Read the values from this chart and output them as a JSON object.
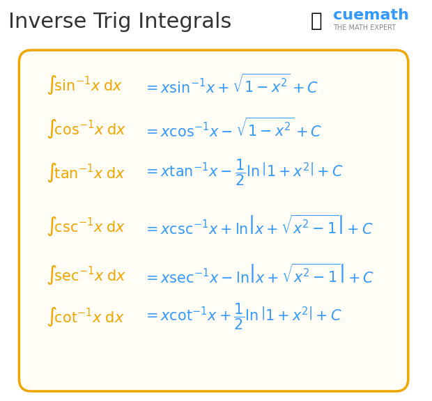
{
  "title": "Inverse Trig Integrals",
  "title_color": "#333333",
  "title_fontsize": 22,
  "bg_color": "#ffffff",
  "box_edge_color": "#f0a500",
  "box_face_color": "#fffdf5",
  "orange_color": "#f0a500",
  "blue_color": "#3399ff",
  "formulas": [
    {
      "lhs": "$\\int\\!\\sin^{-1}\\!x\\;dx$",
      "rhs": "$= x\\sin^{-1}\\!x + \\sqrt{1 - x^2} + C$"
    },
    {
      "lhs": "$\\int\\!\\cos^{-1}\\!x\\;dx$",
      "rhs": "$= x\\cos^{-1}\\!x - \\sqrt{1 - x^2} + C$"
    },
    {
      "lhs": "$\\int\\!\\tan^{-1}\\!x\\;dx$",
      "rhs": "$= x\\tan^{-1}\\!x - \\dfrac{1}{2}\\ln\\left|1 + x^2\\right| + C$"
    },
    {
      "lhs": "$\\int\\!\\csc^{-1}\\!x\\;dx$",
      "rhs": "$= x\\csc^{-1}\\!x + \\ln\\left|x + \\sqrt{x^2-1}\\right| + C$"
    },
    {
      "lhs": "$\\int\\!\\sec^{-1}\\!x\\;dx$",
      "rhs": "$= x\\sec^{-1}\\!x - \\ln\\left|x + \\sqrt{x^2-1}\\right| + C$"
    },
    {
      "lhs": "$\\int\\!\\cot^{-1}\\!x\\;dx$",
      "rhs": "$= x\\cot^{-1}\\!x + \\dfrac{1}{2}\\ln\\left|1 + x^2\\right| + C$"
    }
  ],
  "formula_fontsize": 15,
  "cuemath_text": "cuemath",
  "cuemath_sub": "THE MATH EXPERT",
  "cuemath_color": "#3399ff",
  "cuemath_sub_color": "#888888"
}
